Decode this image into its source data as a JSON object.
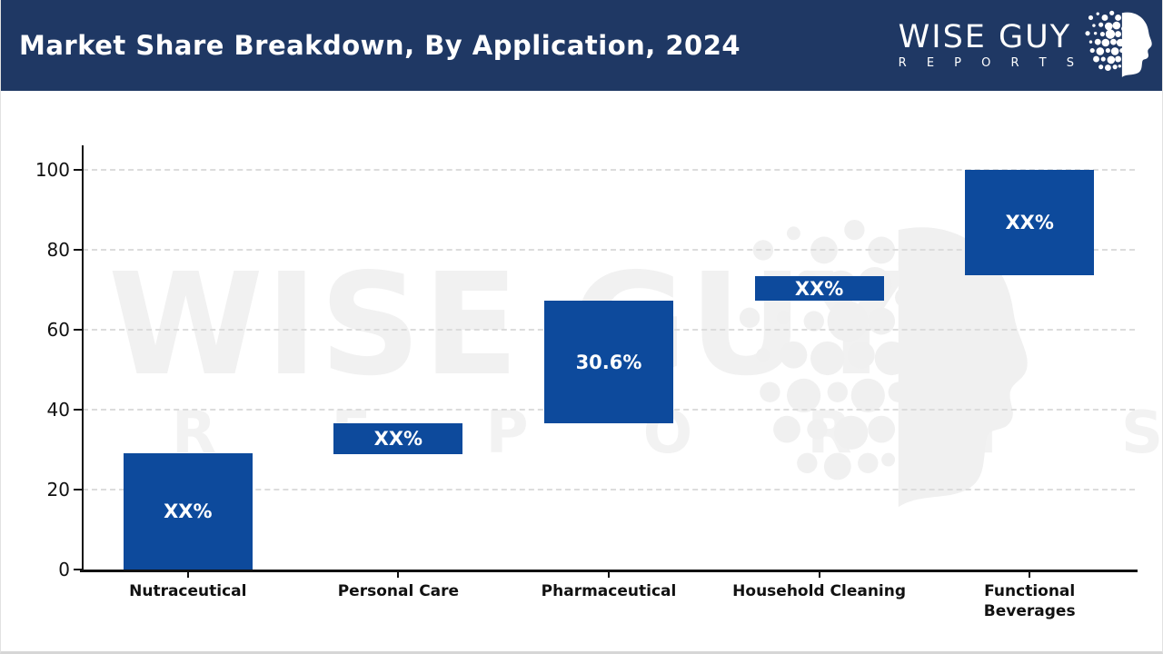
{
  "header": {
    "title": "Market Share Breakdown, By Application, 2024",
    "background_color": "#1f3864",
    "brand": {
      "name_line1": "WISE GUY",
      "name_line2": "R E P O R T S"
    }
  },
  "watermark": {
    "line1": "WISE GUY",
    "line2": "R E P O R T S"
  },
  "chart_data": {
    "type": "bar",
    "subtype": "floating-waterfall",
    "title": "Market Share Breakdown, By Application, 2024",
    "categories": [
      "Nutraceutical",
      "Personal Care",
      "Pharmaceutical",
      "Household Cleaning",
      "Functional\nBeverages"
    ],
    "segments": [
      {
        "category": "Nutraceutical",
        "start": 0,
        "end": 29,
        "label": "XX%"
      },
      {
        "category": "Personal Care",
        "start": 28.9,
        "end": 36.6,
        "label": "XX%"
      },
      {
        "category": "Pharmaceutical",
        "start": 36.6,
        "end": 67.2,
        "label": "30.6%"
      },
      {
        "category": "Household Cleaning",
        "start": 67.2,
        "end": 73.4,
        "label": "XX%"
      },
      {
        "category": "Functional Beverages",
        "start": 73.6,
        "end": 100,
        "label": "XX%"
      }
    ],
    "xlabel": "",
    "ylabel": "",
    "ylim": [
      0,
      100
    ],
    "yticks": [
      0,
      20,
      40,
      60,
      80,
      100
    ],
    "grid": "horizontal-dashed",
    "legend": "none",
    "bar_color": "#0d4a9c",
    "bar_label_color": "#ffffff",
    "axis_color": "#111111"
  }
}
